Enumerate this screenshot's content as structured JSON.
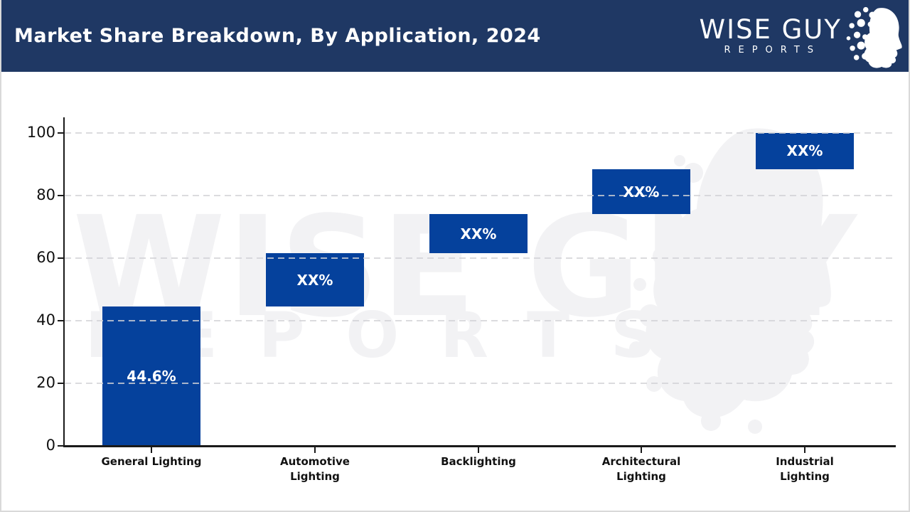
{
  "header": {
    "title": "Market Share Breakdown, By Application, 2024",
    "background_color": "#1f3864",
    "logo": {
      "line1": "WISE GUY",
      "line2": "REPORTS"
    }
  },
  "watermark": {
    "line1": "WISE GUY",
    "line2": "REPORTS"
  },
  "chart_data": {
    "type": "bar",
    "subtype": "waterfall",
    "title": "Market Share Breakdown, By Application, 2024",
    "categories": [
      "General Lighting",
      "Automotive Lighting",
      "Backlighting",
      "Architectural Lighting",
      "Industrial Lighting"
    ],
    "axis_label_lines": [
      [
        "General Lighting"
      ],
      [
        "Automotive",
        "Lighting"
      ],
      [
        "Backlighting"
      ],
      [
        "Architectural",
        "Lighting"
      ],
      [
        "Industrial",
        "Lighting"
      ]
    ],
    "segments": [
      {
        "category": "General Lighting",
        "start": 0,
        "end": 44.6,
        "label": "44.6%"
      },
      {
        "category": "Automotive Lighting",
        "start": 44.6,
        "end": 61.5,
        "label": "XX%"
      },
      {
        "category": "Backlighting",
        "start": 61.5,
        "end": 74.0,
        "label": "XX%"
      },
      {
        "category": "Architectural Lighting",
        "start": 74.0,
        "end": 88.5,
        "label": "XX%"
      },
      {
        "category": "Industrial Lighting",
        "start": 88.5,
        "end": 100.0,
        "label": "XX%"
      }
    ],
    "yticks": [
      0,
      20,
      40,
      60,
      80,
      100
    ],
    "ylim": [
      0,
      105
    ],
    "xlabel": "",
    "ylabel": "",
    "grid": "dashed-horizontal",
    "legend": "none",
    "bar_color": "#05419c",
    "bar_label_color": "#ffffff",
    "gridline_color": "#d9d9d9",
    "axis_color": "#1a1a1a"
  }
}
